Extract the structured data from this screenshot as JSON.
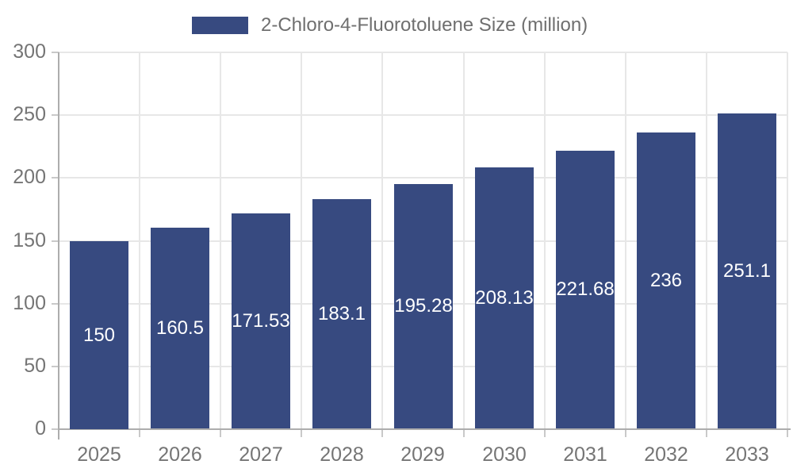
{
  "chart_data": {
    "type": "bar",
    "title": "",
    "legend": "2-Chloro-4-Fluorotoluene Size (million)",
    "legend_position": "top-center",
    "categories": [
      "2025",
      "2026",
      "2027",
      "2028",
      "2029",
      "2030",
      "2031",
      "2032",
      "2033"
    ],
    "values": [
      150,
      160.5,
      171.53,
      183.1,
      195.28,
      208.13,
      221.68,
      236,
      251.1
    ],
    "value_labels": [
      "150",
      "160.5",
      "171.53",
      "183.1",
      "195.28",
      "208.13",
      "221.68",
      "236",
      "251.1"
    ],
    "xlabel": "",
    "ylabel": "",
    "ylim": [
      0,
      300
    ],
    "yticks": [
      0,
      50,
      100,
      150,
      200,
      250,
      300
    ],
    "grid": true
  },
  "colors": {
    "bar": "#374a80",
    "grid": "#e7e7e7",
    "axis_line": "#adadad",
    "tick": "#c9c9c9",
    "axis_text": "#757575",
    "legend_text": "#6f6f6f",
    "bar_label": "#ffffff",
    "background": "#ffffff"
  }
}
